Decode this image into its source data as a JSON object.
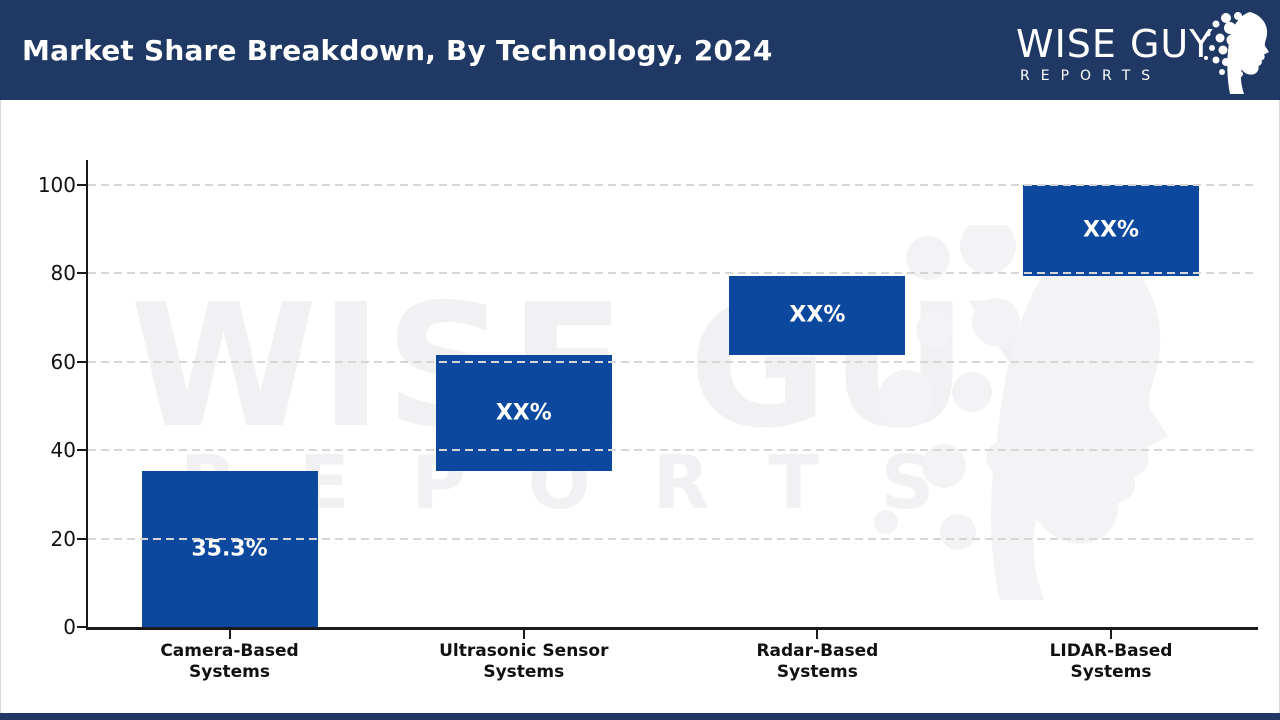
{
  "header": {
    "title": "Market Share Breakdown, By Technology, 2024",
    "logo": {
      "line1": "WISE GUY",
      "line2": "REPORTS"
    }
  },
  "watermark": {
    "line1": "WISE GUY",
    "line2": "REPORTS"
  },
  "colors": {
    "header_bg": "#1f3864",
    "footer_bar": "#1f3864",
    "bar": "#0c499e",
    "bar_label": "#ffffff",
    "grid": "#d6d6d6",
    "axis": "#1a1a1a",
    "watermark": "#f1f1f3"
  },
  "chart_data": {
    "type": "bar",
    "subtype": "floating-waterfall",
    "title": "Market Share Breakdown, By Technology, 2024",
    "categories": [
      "Camera-Based\nSystems",
      "Ultrasonic Sensor\nSystems",
      "Radar-Based\nSystems",
      "LIDAR-Based\nSystems"
    ],
    "segments": [
      {
        "category": "Camera-Based Systems",
        "from": 0,
        "to": 35.3,
        "label": "35.3%"
      },
      {
        "category": "Ultrasonic Sensor Systems",
        "from": 35.3,
        "to": 61.5,
        "label": "XX%"
      },
      {
        "category": "Radar-Based Systems",
        "from": 61.5,
        "to": 79.3,
        "label": "XX%"
      },
      {
        "category": "LIDAR-Based Systems",
        "from": 79.3,
        "to": 100,
        "label": "XX%"
      }
    ],
    "yticks": [
      0,
      20,
      40,
      60,
      80,
      100
    ],
    "ytick_labels": [
      "0",
      "20",
      "40",
      "60",
      "80",
      "100"
    ],
    "ylim": [
      0,
      105
    ],
    "xlabel": "",
    "ylabel": "",
    "grid": "dashed-horizontal",
    "legend": "none"
  }
}
